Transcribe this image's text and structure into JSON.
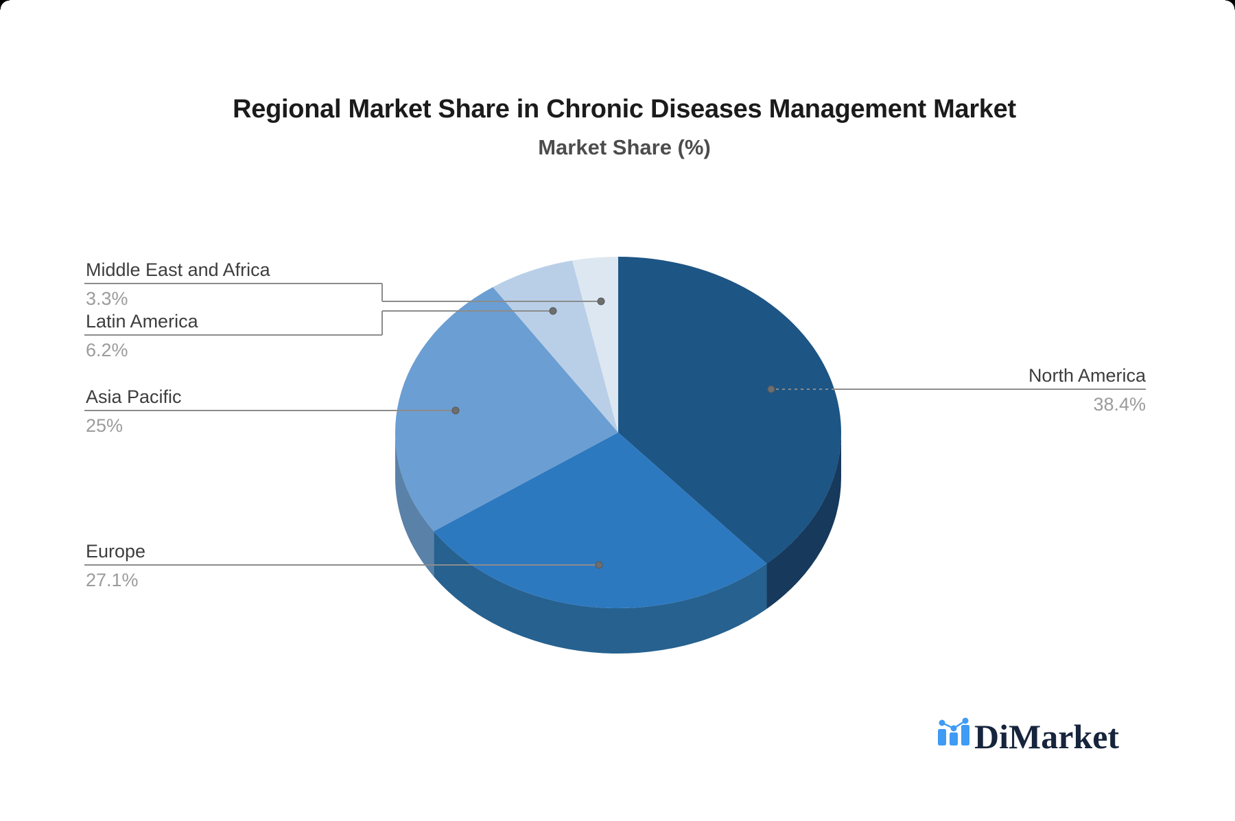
{
  "window": {
    "background": "#ffffff"
  },
  "chart_data": {
    "type": "pie",
    "title": "Regional Market Share in Chronic Diseases Management Market",
    "subtitle": "Market Share (%)",
    "unit": "%",
    "direction": "clockwise",
    "start_angle_deg": 0,
    "effect": "3d",
    "legend_position": "none",
    "slices": [
      {
        "label": "North America",
        "value": 38.4,
        "display": "38.4%",
        "color": "#1d5585",
        "side_color": "#16395c"
      },
      {
        "label": "Europe",
        "value": 27.1,
        "display": "27.1%",
        "color": "#2d79c0",
        "side_color": "#26618f"
      },
      {
        "label": "Asia Pacific",
        "value": 25,
        "display": "25%",
        "color": "#6b9ed2",
        "side_color": "#5a81a8"
      },
      {
        "label": "Latin America",
        "value": 6.2,
        "display": "6.2%",
        "color": "#b9cfe7",
        "side_color": "#8fb0d2"
      },
      {
        "label": "Middle East and Africa",
        "value": 3.3,
        "display": "3.3%",
        "color": "#dde7f1",
        "side_color": "#b6c8da"
      }
    ],
    "label_color": "#3d3d3d",
    "value_color": "#9b9b9b",
    "leader_line_color": "#8c8c8c"
  },
  "branding": {
    "logo_text": "DiMarket",
    "logo_text_color": "#16243c",
    "logo_icon": "bar-line-chart-icon",
    "logo_icon_color": "#3f9bf4"
  }
}
